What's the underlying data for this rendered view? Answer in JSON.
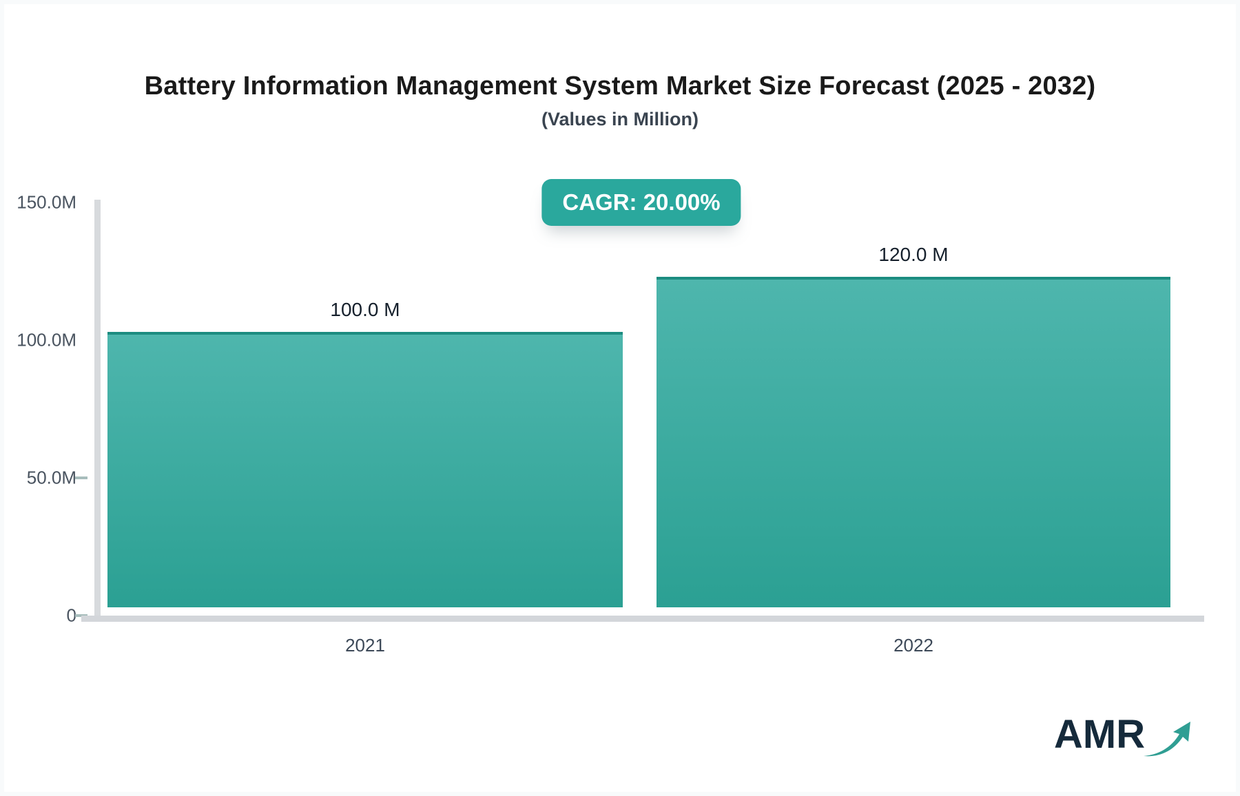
{
  "title": "Battery Information Management System Market Size Forecast (2025 - 2032)",
  "subtitle": "(Values in Million)",
  "badge": {
    "label": "CAGR: 20.00%"
  },
  "chart_data": {
    "type": "bar",
    "title": "Battery Information Management System Market Size Forecast (2025 - 2032)",
    "subtitle": "(Values in Million)",
    "cagr_percent": 20.0,
    "categories": [
      "2021",
      "2022"
    ],
    "values": [
      100.0,
      120.0
    ],
    "unit": "Million",
    "bar_labels": [
      "100.0 M",
      "120.0 M"
    ],
    "y_ticks": [
      "150.0M",
      "100.0M",
      "50.0M",
      "0"
    ],
    "y_tick_values": [
      150,
      100,
      50,
      0
    ],
    "ylim": [
      0,
      150
    ],
    "xlabel": "",
    "ylabel": "",
    "grid": false,
    "legend": false
  },
  "colors": {
    "accent": "#2aa89d",
    "bar_top": "#4eb6ad",
    "bar_bottom": "#2ba093",
    "bar_border": "#1c8c80",
    "logo_navy": "#152a3b",
    "logo_arrow": "#2f9e93"
  },
  "logo": {
    "text": "AMR"
  }
}
